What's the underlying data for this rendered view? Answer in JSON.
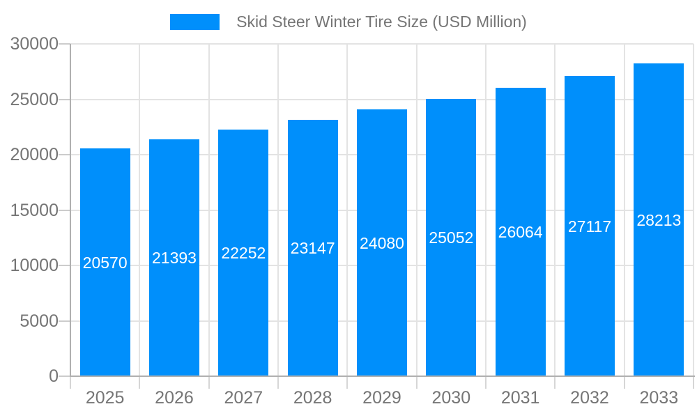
{
  "chart_data": {
    "type": "bar",
    "title": "Skid Steer Winter Tire Size (USD Million)",
    "legend_position": "top",
    "categories": [
      "2025",
      "2026",
      "2027",
      "2028",
      "2029",
      "2030",
      "2031",
      "2032",
      "2033"
    ],
    "values": [
      20570,
      21393,
      22252,
      23147,
      24080,
      25052,
      26064,
      27117,
      28213
    ],
    "value_labels_shown": true,
    "xlabel": "",
    "ylabel": "",
    "ylim": [
      0,
      30000
    ],
    "yticks": [
      0,
      5000,
      10000,
      15000,
      20000,
      25000,
      30000
    ],
    "grid": true,
    "colors": {
      "bar": "#008ffb",
      "value_label": "#ffffff",
      "axis_text": "#757575",
      "legend_text": "#757575",
      "gridline": "#e3e3e3",
      "axis_line": "#b0b0b0"
    }
  }
}
